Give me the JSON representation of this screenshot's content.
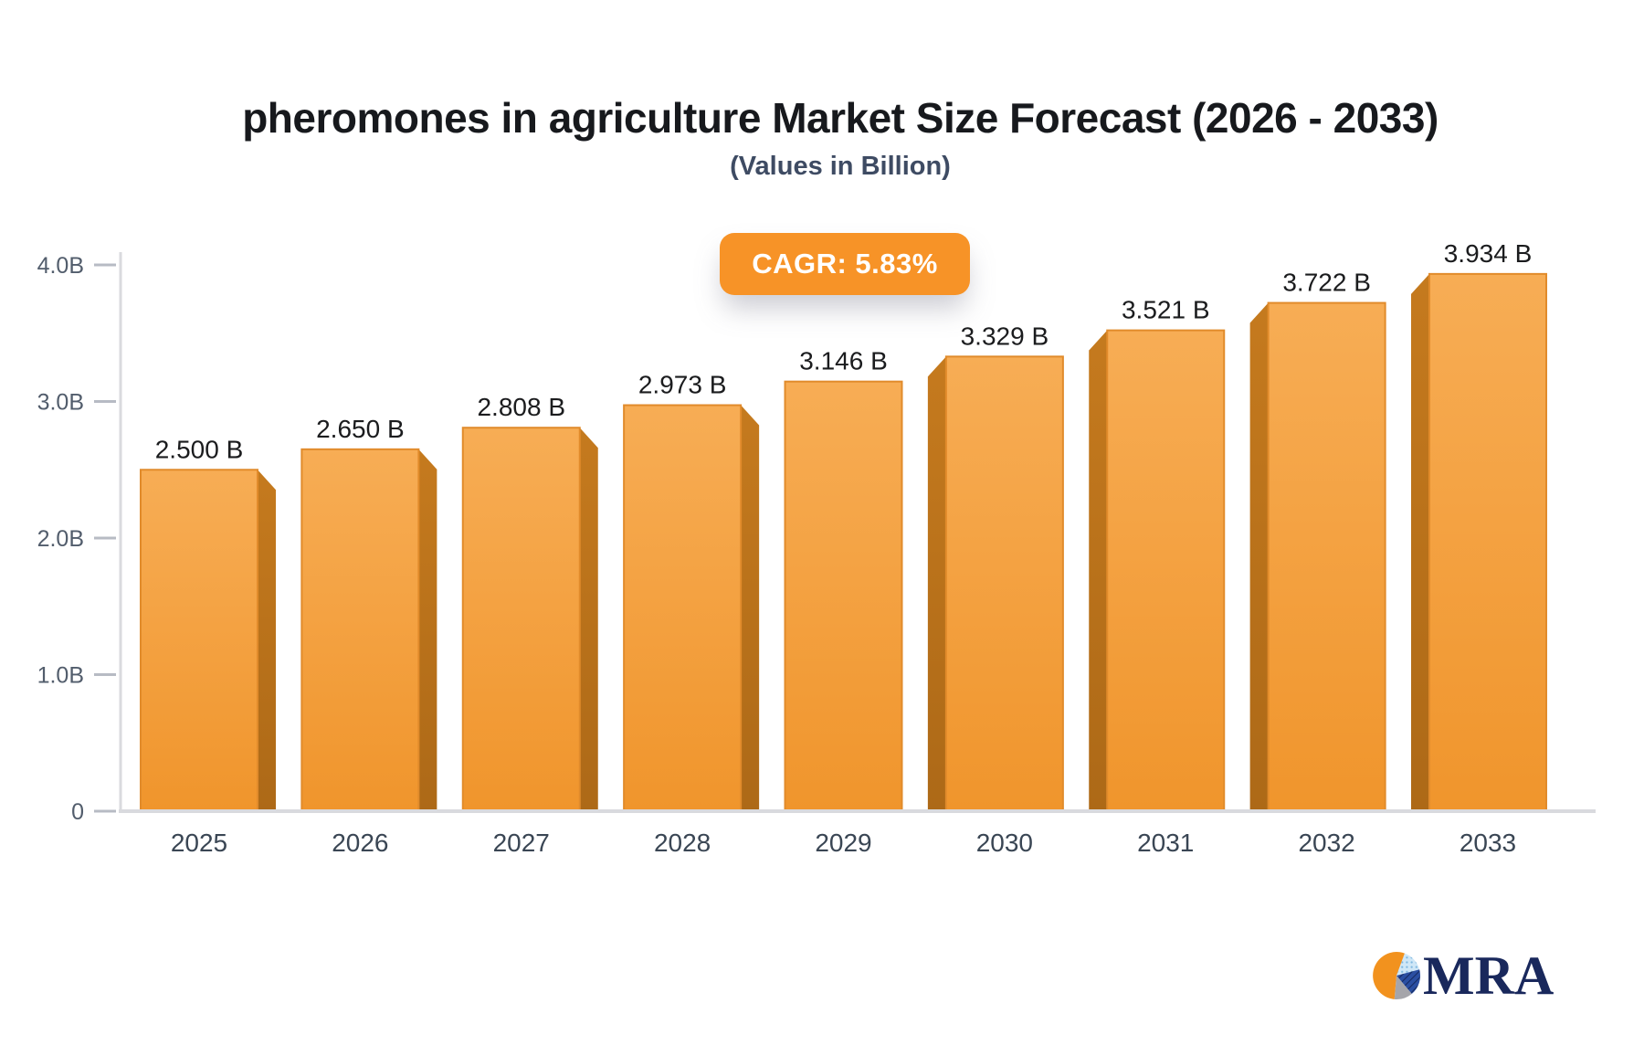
{
  "header": {
    "title": "pheromones in agriculture Market Size Forecast (2026 - 2033)",
    "subtitle": "(Values in Billion)"
  },
  "badge": {
    "label": "CAGR: 5.83%"
  },
  "chart_data": {
    "type": "bar",
    "title": "pheromones in agriculture Market Size Forecast (2026 - 2033)",
    "subtitle": "(Values in Billion)",
    "annotation": "CAGR: 5.83%",
    "categories": [
      "2025",
      "2026",
      "2027",
      "2028",
      "2029",
      "2030",
      "2031",
      "2032",
      "2033"
    ],
    "values": [
      2.5,
      2.65,
      2.808,
      2.973,
      3.146,
      3.329,
      3.521,
      3.722,
      3.934
    ],
    "value_labels": [
      "2.500 B",
      "2.650 B",
      "2.808 B",
      "2.973 B",
      "3.146 B",
      "3.329 B",
      "3.521 B",
      "3.722 B",
      "3.934 B"
    ],
    "y_axis_ticks": [
      {
        "value": 0,
        "label": "0"
      },
      {
        "value": 1,
        "label": "1.0B"
      },
      {
        "value": 2,
        "label": "2.0B"
      },
      {
        "value": 3,
        "label": "3.0B"
      },
      {
        "value": 4,
        "label": "4.0B"
      }
    ],
    "ylim": [
      0,
      4
    ],
    "grid": false,
    "legend": false,
    "style": "3d-bars"
  },
  "logo": {
    "text": "MRA"
  },
  "colors": {
    "accent": "#f79327",
    "bar_face_top": "#f7ad55",
    "bar_face_bottom": "#f0952c",
    "bar_side_top": "#c57a1e",
    "bar_side_bottom": "#ad6917",
    "bar_stroke": "#e18b2b",
    "axis_line": "#d9dade",
    "tick_dash": "#b7bbc4",
    "tick_label": "#525d6c",
    "year_label": "#3a4654",
    "value_label": "#1b1c1e",
    "title": "#17191d",
    "subtitle": "#3e4b63",
    "logo_navy": "#19285c",
    "logo_orange": "#f2921e",
    "logo_light_blue": "#a9d2ee",
    "logo_blue": "#2b4fa2",
    "logo_gray": "#a5a5aa"
  }
}
